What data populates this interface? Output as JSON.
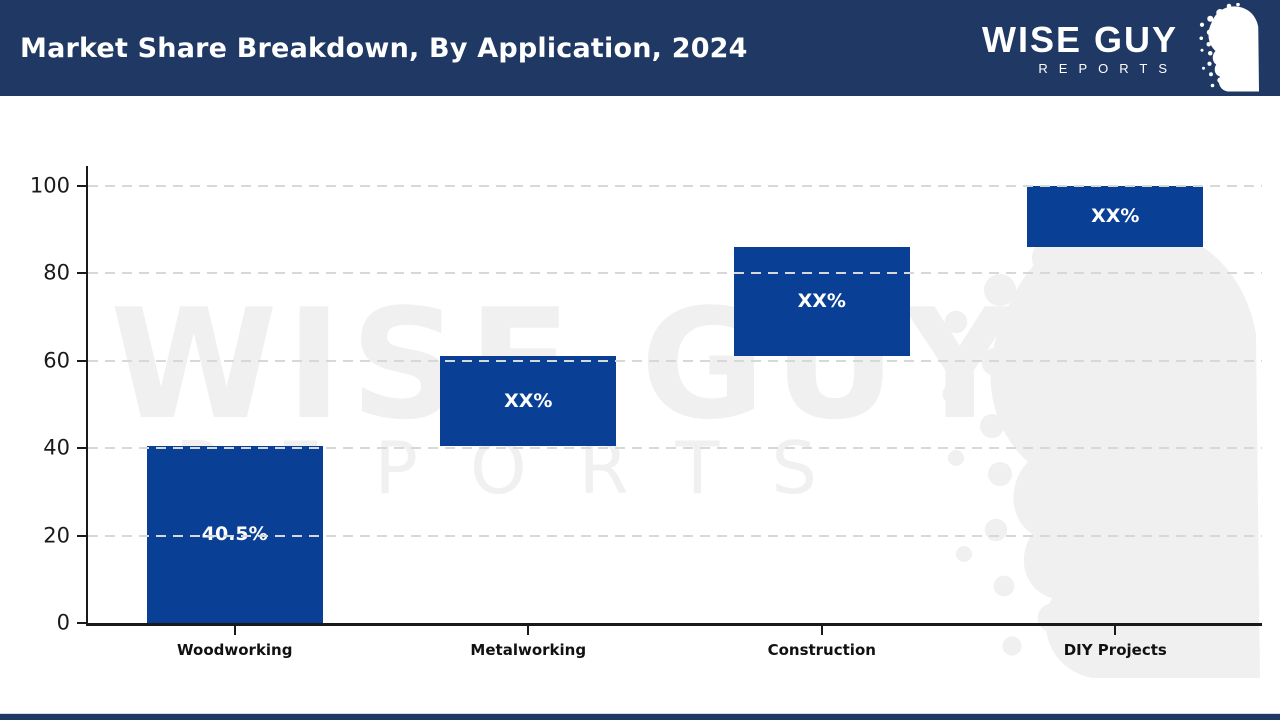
{
  "header": {
    "title": "Market Share Breakdown, By Application, 2024",
    "logo": {
      "line1": "WISE GUY",
      "line2": "REPORTS"
    }
  },
  "watermark": {
    "line1": "WISE GUY",
    "line2": "REPORTS"
  },
  "chart_data": {
    "type": "bar",
    "subtype": "waterfall",
    "title": "Market Share Breakdown, By Application, 2024",
    "xlabel": "",
    "ylabel": "",
    "categories": [
      "Woodworking",
      "Metalworking",
      "Construction",
      "DIY Projects"
    ],
    "segments": [
      {
        "category": "Woodworking",
        "start": 0,
        "end": 40.5,
        "label": "40.5%"
      },
      {
        "category": "Metalworking",
        "start": 40.5,
        "end": 61,
        "label": "XX%"
      },
      {
        "category": "Construction",
        "start": 61,
        "end": 86,
        "label": "XX%"
      },
      {
        "category": "DIY Projects",
        "start": 86,
        "end": 100,
        "label": "XX%"
      }
    ],
    "yticks": [
      0,
      20,
      40,
      60,
      80,
      100
    ],
    "ylim": [
      0,
      104
    ],
    "grid": "horizontal-dashed",
    "legend": "none"
  },
  "colors": {
    "header_bg": "#1f3864",
    "bar": "#0a3f96",
    "bar_label": "#ffffff",
    "gridline": "#d8d8d8",
    "axis": "#1a1a1a",
    "watermark": "#f0f0f0",
    "footer_bg": "#1f3864"
  }
}
